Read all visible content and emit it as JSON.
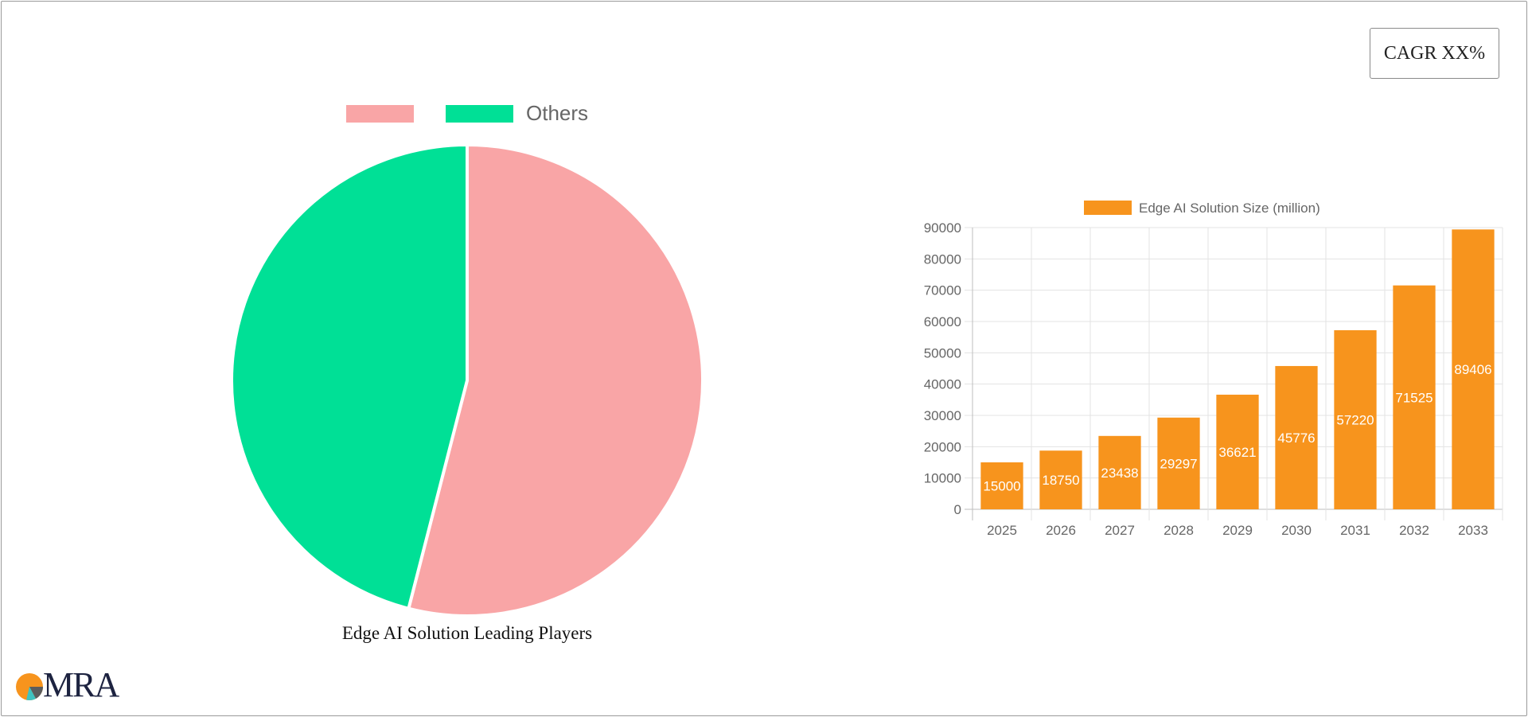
{
  "cagr_label": "CAGR XX%",
  "pie": {
    "title": "Edge AI Solution Leading Players",
    "legend": [
      {
        "label": "",
        "color": "#f9a5a6"
      },
      {
        "label": "Others",
        "color": "#00e096"
      }
    ]
  },
  "logo": {
    "text": "MRA",
    "colors": [
      "#f7941d",
      "#3fc2c0",
      "#5c5c5c"
    ]
  },
  "chart_data": [
    {
      "type": "pie",
      "title": "Edge AI Solution Leading Players",
      "slices": [
        {
          "label": "",
          "value": 54,
          "color": "#f9a5a6"
        },
        {
          "label": "Others",
          "value": 46,
          "color": "#00e096"
        }
      ]
    },
    {
      "type": "bar",
      "categories": [
        "2025",
        "2026",
        "2027",
        "2028",
        "2029",
        "2030",
        "2031",
        "2032",
        "2033"
      ],
      "series": [
        {
          "name": "Edge AI Solution Size (million)",
          "color": "#f7941d",
          "values": [
            15000,
            18750,
            23438,
            29297,
            36621,
            45776,
            57220,
            71525,
            89406
          ]
        }
      ],
      "ylim": [
        0,
        90000
      ],
      "yticks": [
        0,
        10000,
        20000,
        30000,
        40000,
        50000,
        60000,
        70000,
        80000,
        90000
      ],
      "grid": true,
      "legend_position": "top"
    }
  ]
}
